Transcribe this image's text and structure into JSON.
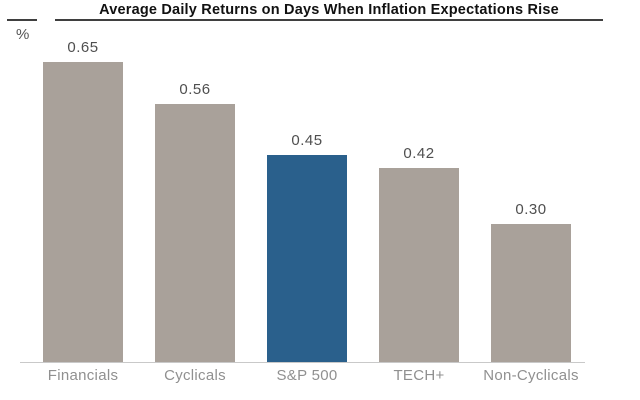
{
  "chart_data": {
    "type": "bar",
    "title": "Average Daily Returns on Days When Inflation Expectations Rise",
    "unit_label": "%",
    "categories": [
      "Financials",
      "Cyclicals",
      "S&P 500",
      "TECH+",
      "Non-Cyclicals"
    ],
    "values": [
      0.65,
      0.56,
      0.45,
      0.42,
      0.3
    ],
    "value_labels": [
      "0.65",
      "0.56",
      "0.45",
      "0.42",
      "0.30"
    ],
    "highlight_index": 2,
    "highlight_category": "S&P 500",
    "xlabel": "",
    "ylabel": "%",
    "ylim": [
      0,
      0.72
    ],
    "grid": false,
    "legend": false,
    "colors": {
      "bar": "#a9a19a",
      "highlight_bar": "#2a608c",
      "title_text": "#111111",
      "value_label_text": "#4f4f4f",
      "category_label_text": "#909090",
      "baseline": "#c9c9c9",
      "rule": "#3f3f3f"
    }
  }
}
